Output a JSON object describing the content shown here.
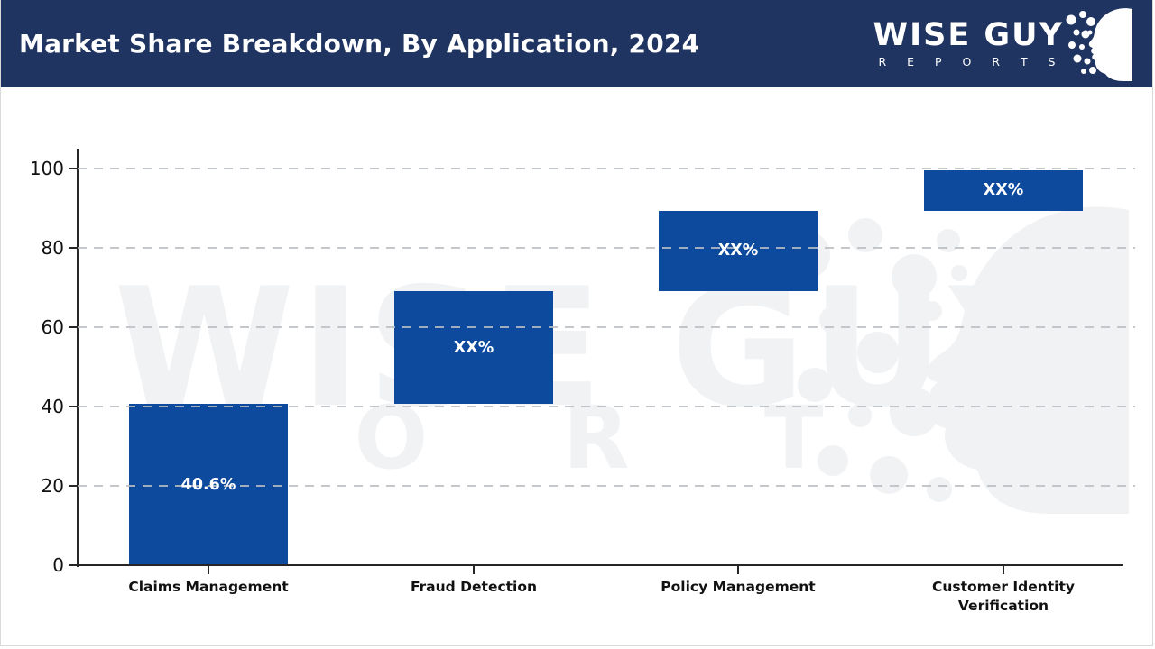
{
  "header": {
    "title": "Market Share Breakdown, By Application, 2024",
    "logo": {
      "name": "WISE GUY",
      "sub": "R E P O R T S"
    }
  },
  "watermark": {
    "line1": "WISE GUY",
    "line2": "P O R T S"
  },
  "chart_data": {
    "type": "bar",
    "subtype": "waterfall",
    "title": "Market Share Breakdown, By Application, 2024",
    "categories": [
      "Claims Management",
      "Fraud Detection",
      "Policy Management",
      "Customer Identity Verification"
    ],
    "segments": [
      {
        "category": "Claims Management",
        "start": 0,
        "end": 40.6,
        "label": "40.6%"
      },
      {
        "category": "Fraud Detection",
        "start": 40.6,
        "end": 69.1,
        "label": "XX%"
      },
      {
        "category": "Policy Management",
        "start": 69.1,
        "end": 89.4,
        "label": "XX%"
      },
      {
        "category": "Customer Identity Verification",
        "start": 89.4,
        "end": 99.6,
        "label": "XX%"
      }
    ],
    "xlabel": "",
    "ylabel": "",
    "ylim": [
      0,
      105
    ],
    "yticks": [
      0,
      20,
      40,
      60,
      80,
      100
    ],
    "grid": "dashed-horizontal-over-bars",
    "legend": "none",
    "colors": {
      "bar": "#0d4a9e",
      "bar_label": "#ffffff",
      "header_bg": "#1f3460",
      "axis": "#262626",
      "grid": "#bdc1c7",
      "watermark": "#f1f2f4"
    }
  }
}
